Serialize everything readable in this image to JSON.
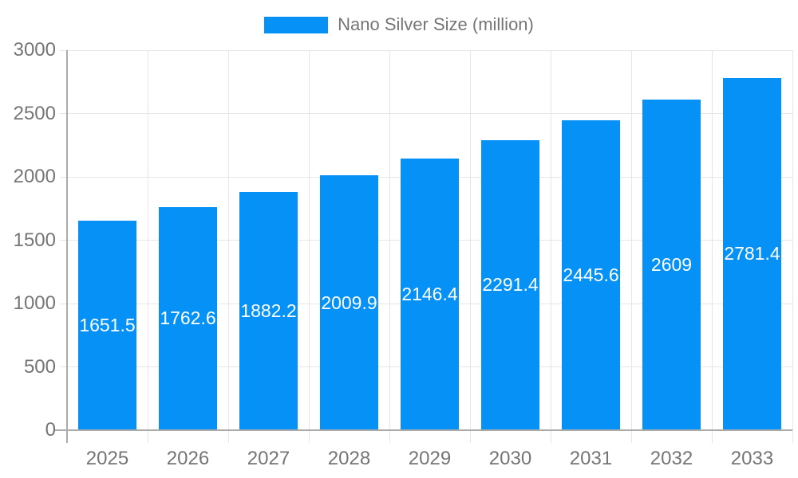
{
  "chart_data": {
    "type": "bar",
    "title": "",
    "series": [
      {
        "name": "Nano Silver Size (million)",
        "values": [
          1651.5,
          1762.6,
          1882.2,
          2009.9,
          2146.4,
          2291.4,
          2445.6,
          2609,
          2781.4
        ]
      }
    ],
    "categories": [
      "2025",
      "2026",
      "2027",
      "2028",
      "2029",
      "2030",
      "2031",
      "2032",
      "2033"
    ],
    "xlabel": "",
    "ylabel": "",
    "ylim": [
      0,
      3000
    ],
    "ytick_step": 500,
    "yticks": [
      0,
      500,
      1000,
      1500,
      2000,
      2500,
      3000
    ],
    "grid": true,
    "legend_position": "top-center",
    "value_labels": "inside-center-white",
    "colors": {
      "bar": "#0591f5",
      "value_label": "#ffffff",
      "axis_line": "#ababab",
      "gridline": "#e6e6e6",
      "tick_label": "#757575",
      "legend_text": "#757575",
      "background": "#ffffff"
    }
  }
}
